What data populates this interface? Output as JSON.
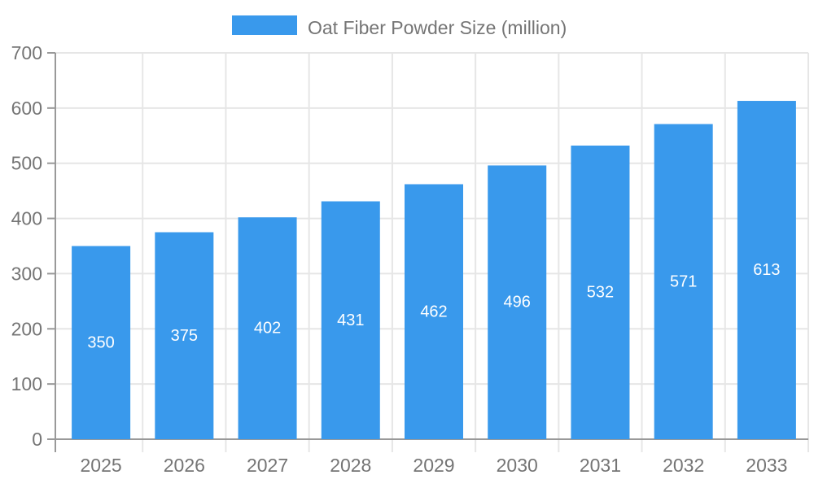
{
  "legend": {
    "label": "Oat Fiber Powder Size (million)"
  },
  "colors": {
    "bar": "#3999EC",
    "axis": "#999999",
    "grid": "#E6E6E6",
    "tick_label": "#757575",
    "legend_label": "#757575",
    "value_label": "#FFFFFF",
    "background": "#FFFFFF"
  },
  "chart_data": {
    "type": "bar",
    "title": "Oat Fiber Powder Size (million)",
    "categories": [
      "2025",
      "2026",
      "2027",
      "2028",
      "2029",
      "2030",
      "2031",
      "2032",
      "2033"
    ],
    "values": [
      350,
      375,
      402,
      431,
      462,
      496,
      532,
      571,
      613
    ],
    "xlabel": "",
    "ylabel": "",
    "ylim": [
      0,
      700
    ],
    "ytick_step": 100,
    "yticks": [
      0,
      100,
      200,
      300,
      400,
      500,
      600,
      700
    ],
    "grid": true,
    "legend_position": "top",
    "value_labels": "centered-inside-bars"
  }
}
